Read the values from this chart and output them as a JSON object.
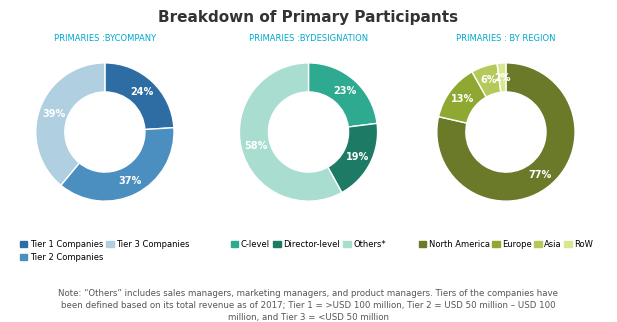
{
  "title": "Breakdown of Primary Participants",
  "title_fontsize": 11,
  "title_color": "#333333",
  "chart1_subtitle": "PRIMARIES :BYCOMPANY",
  "chart1_values": [
    24,
    37,
    39
  ],
  "chart1_labels": [
    "24%",
    "37%",
    "39%"
  ],
  "chart1_colors": [
    "#2e6da4",
    "#4a8fc0",
    "#b0cfe0"
  ],
  "chart1_legend": [
    "Tier 1 Companies",
    "Tier 2 Companies",
    "Tier 3 Companies"
  ],
  "chart1_startangle": 90,
  "chart2_subtitle": "PRIMARIES :BYDESIGNATION",
  "chart2_values": [
    23,
    19,
    58
  ],
  "chart2_labels": [
    "23%",
    "19%",
    "58%"
  ],
  "chart2_colors": [
    "#2eaa90",
    "#1d7a65",
    "#a8ddd0"
  ],
  "chart2_legend": [
    "C-level",
    "Director-level",
    "Others*"
  ],
  "chart2_startangle": 90,
  "chart3_subtitle": "PRIMARIES : BY REGION",
  "chart3_values": [
    77,
    13,
    6,
    2
  ],
  "chart3_labels": [
    "77%",
    "13%",
    "6%",
    "2%"
  ],
  "chart3_colors": [
    "#6b7a28",
    "#8ea832",
    "#b5c85a",
    "#d8e890"
  ],
  "chart3_legend": [
    "North America",
    "Europe",
    "Asia",
    "RoW"
  ],
  "chart3_startangle": 90,
  "note_text": "Note: “Others” includes sales managers, marketing managers, and product managers. Tiers of the companies have\nbeen defined based on its total revenue as of 2017; Tier 1 = >USD 100 million, Tier 2 = USD 50 million – USD 100\nmillion, and Tier 3 = <USD 50 million",
  "note_fontsize": 6.2,
  "subtitle_fontsize": 6.0,
  "subtitle_color": "#00aacc",
  "legend_fontsize": 6.0,
  "pct_fontsize": 7,
  "bg_color": "#ffffff",
  "donut_width": 0.42
}
